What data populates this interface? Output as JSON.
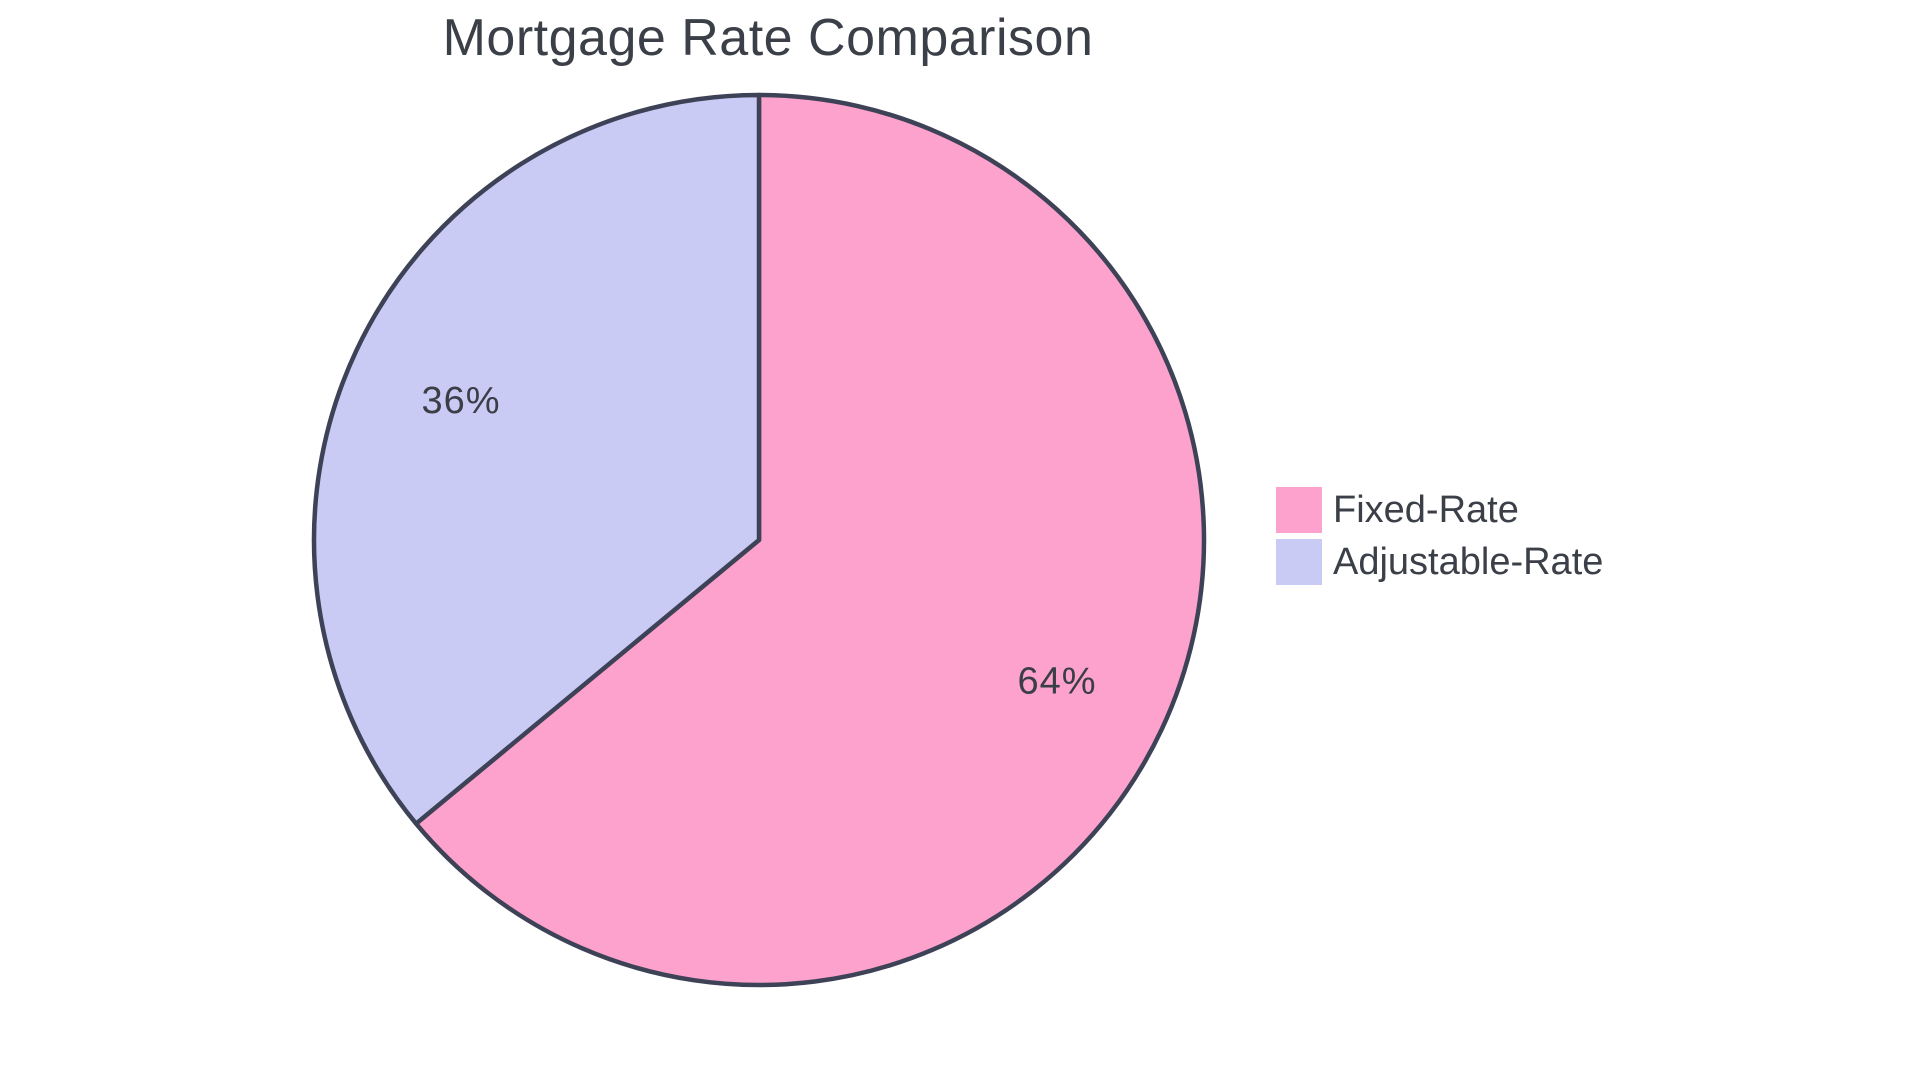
{
  "page": {
    "background_color": "#FFFFFF"
  },
  "chart_data": {
    "type": "pie",
    "title": "Mortgage Rate Comparison",
    "slices": [
      {
        "label": "Fixed-Rate",
        "value": 64,
        "display_label": "64%",
        "color": "#FCA2CD"
      },
      {
        "label": "Adjustable-Rate",
        "value": 36,
        "display_label": "36%",
        "color": "#C9CBF5"
      }
    ],
    "start_angle_deg": 0,
    "direction": "clockwise",
    "labels_inside": true,
    "label_radius_fraction": 0.74,
    "slice_border_color": "#3E4257",
    "slice_border_width": 4.5,
    "label_color": "#3A3E46",
    "title_color": "#3B3F47",
    "legend_position": "middle-right",
    "grid": false
  }
}
